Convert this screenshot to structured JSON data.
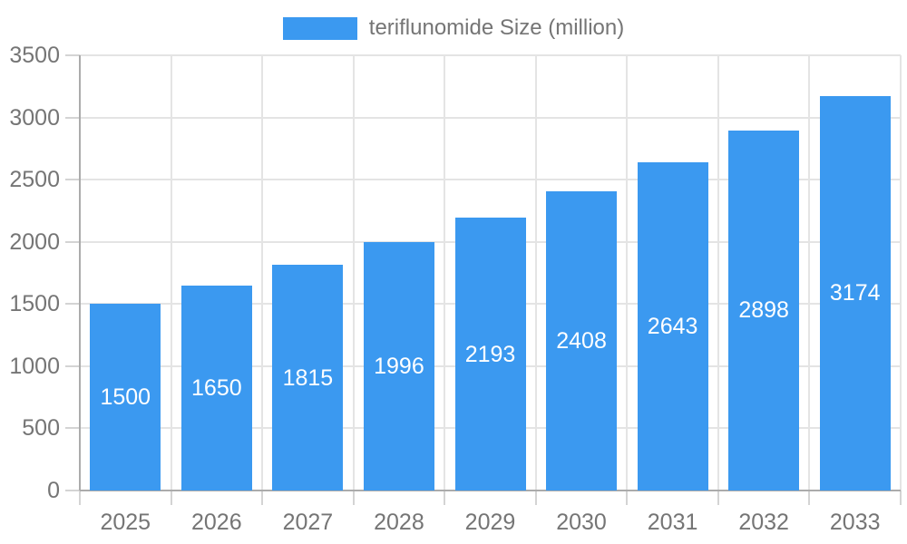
{
  "legend": {
    "label": "teriflunomide Size (million)"
  },
  "colors": {
    "bar": "#3b99f0",
    "grid": "#e4e4e4",
    "tick": "#d4d4d4",
    "axis": "#ababab",
    "axis_text": "#757575",
    "value_text": "#ffffff",
    "background": "#ffffff"
  },
  "chart_data": {
    "type": "bar",
    "title": "teriflunomide Size (million)",
    "categories": [
      "2025",
      "2026",
      "2027",
      "2028",
      "2029",
      "2030",
      "2031",
      "2032",
      "2033"
    ],
    "series": [
      {
        "name": "teriflunomide Size (million)",
        "values": [
          1500,
          1650,
          1815,
          1996,
          2193,
          2408,
          2643,
          2898,
          3174
        ]
      }
    ],
    "xlabel": "",
    "ylabel": "",
    "ylim": [
      0,
      3500
    ],
    "ytick_step": 500,
    "yticks": [
      0,
      500,
      1000,
      1500,
      2000,
      2500,
      3000,
      3500
    ],
    "grid": true,
    "legend_position": "top",
    "value_label_position": "inside-center"
  }
}
